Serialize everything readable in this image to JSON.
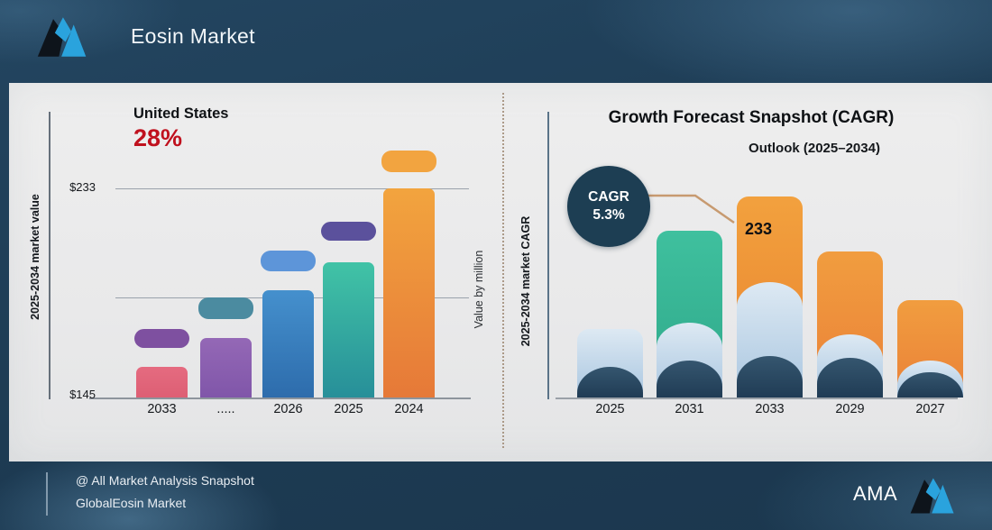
{
  "header": {
    "title": "Eosin Market",
    "brand": "AMA"
  },
  "colors": {
    "background_navy": "#1d3b53",
    "panel_gray": "#e9e9ea",
    "accent_red": "#c0111e",
    "badge_navy": "#1d3e53",
    "connector_tan": "#c79a70",
    "logo_black": "#0e141b",
    "logo_blue": "#2aa3dd"
  },
  "divider": {
    "axis_note": "Value by million"
  },
  "footer": {
    "line1": "@ All Market Analysis Snapshot",
    "line2": "GlobalEosin Market",
    "brand": "AMA"
  },
  "chart_data": [
    {
      "type": "bar",
      "title": "United States",
      "annotation": "28%",
      "annotation_color": "#c0111e",
      "ylabel": "2025-2034 market value",
      "unit_note": "Value by million",
      "categories": [
        "2033",
        ".....",
        "2026",
        "2025",
        "2024"
      ],
      "values": [
        158,
        170,
        190,
        202,
        233
      ],
      "cap_ranges": [
        [
          166,
          174
        ],
        [
          178,
          187
        ],
        [
          198,
          207
        ],
        [
          211,
          219
        ],
        [
          240,
          249
        ]
      ],
      "bar_colors": [
        [
          "#e56b80",
          "#dd5f74"
        ],
        [
          "#9468b6",
          "#8056a9"
        ],
        [
          "#4590cd",
          "#2d6cac"
        ],
        [
          "#41c3a6",
          "#278f99"
        ],
        [
          "#f2a43e",
          "#e67938"
        ]
      ],
      "cap_colors": [
        "#7e50a0",
        "#4b8ba0",
        "#5d95d9",
        "#5b519c",
        "#f2a440"
      ],
      "axis": {
        "baseline_value": 145,
        "baseline_label": "$145",
        "gridlines": [
          {
            "value": 233,
            "label": "$233"
          },
          {
            "value": 187,
            "label": ""
          }
        ],
        "ylim": [
          145,
          258
        ],
        "grid": true,
        "value_prefix": "$"
      }
    },
    {
      "type": "bar",
      "stacked": true,
      "title": "Growth Forecast Snapshot (CAGR)",
      "subtitle": "Outlook (2025–2034)",
      "ylabel": "2025-2034 market CAGR",
      "categories": [
        "2025",
        "2031",
        "2033",
        "2029",
        "2027"
      ],
      "series": [
        {
          "name": "base-navy",
          "values": [
            34,
            41,
            46,
            44,
            28
          ],
          "colors": [
            "#35566f",
            "#203c55"
          ]
        },
        {
          "name": "mid-lightblue",
          "values": [
            42,
            42,
            82,
            26,
            13
          ],
          "colors": [
            "#dde9f3",
            "#a9c6e0"
          ]
        },
        {
          "name": "top-accent",
          "values": [
            0,
            102,
            95,
            92,
            67
          ],
          "colors": null
        }
      ],
      "top_segment_colors": [
        null,
        [
          "#3fc09e",
          "#2fa88a"
        ],
        [
          "#f2a13e",
          "#e9832f"
        ],
        [
          "#f19d3f",
          "#ea8138"
        ],
        [
          "#f19d3f",
          "#ea8138"
        ]
      ],
      "units": "relative height (unlabeled axis)",
      "badge": {
        "line1": "CAGR",
        "line2": "5.3%",
        "color": "#1d3e53"
      },
      "bar_label": {
        "category": "2033",
        "text": "233"
      },
      "connector_color": "#c79a70",
      "legend": false
    }
  ]
}
